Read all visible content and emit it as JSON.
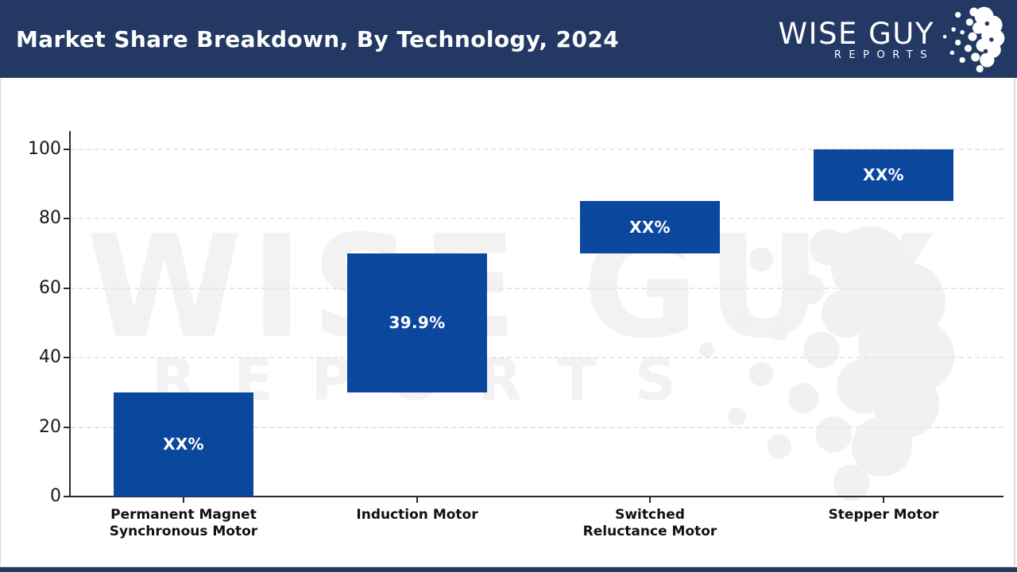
{
  "header": {
    "title": "Market Share Breakdown, By Technology, 2024",
    "logo": {
      "line1": "WISE GUY",
      "line2": "REPORTS"
    }
  },
  "watermark": {
    "line1": "WISE GUY",
    "line2": "REPORTS"
  },
  "colors": {
    "header_bg": "#233862",
    "footer_bg": "#233862",
    "bar": "#0c479e",
    "bar_label": "#ffffff",
    "axis": "#2b2b2b",
    "grid": "#e6e6e6",
    "watermark": "#f2f2f2"
  },
  "chart_data": {
    "type": "bar",
    "subtype": "floating-segment-breakdown",
    "title": "Market Share Breakdown, By Technology, 2024",
    "categories": [
      "Permanent Magnet Synchronous Motor",
      "Induction Motor",
      "Switched Reluctance Motor",
      "Stepper Motor"
    ],
    "category_lines": [
      [
        "Permanent Magnet",
        "Synchronous Motor"
      ],
      [
        "Induction Motor"
      ],
      [
        "Switched",
        "Reluctance Motor"
      ],
      [
        "Stepper Motor"
      ]
    ],
    "bars": [
      {
        "label": "XX%",
        "start": 0,
        "end": 30
      },
      {
        "label": "39.9%",
        "start": 30,
        "end": 70
      },
      {
        "label": "XX%",
        "start": 70,
        "end": 85
      },
      {
        "label": "XX%",
        "start": 85,
        "end": 100
      }
    ],
    "xlabel": "",
    "ylabel": "",
    "ylim": [
      0,
      100
    ],
    "yticks": [
      0,
      20,
      40,
      60,
      80,
      100
    ],
    "grid": "horizontal-dashed",
    "legend": "none"
  }
}
